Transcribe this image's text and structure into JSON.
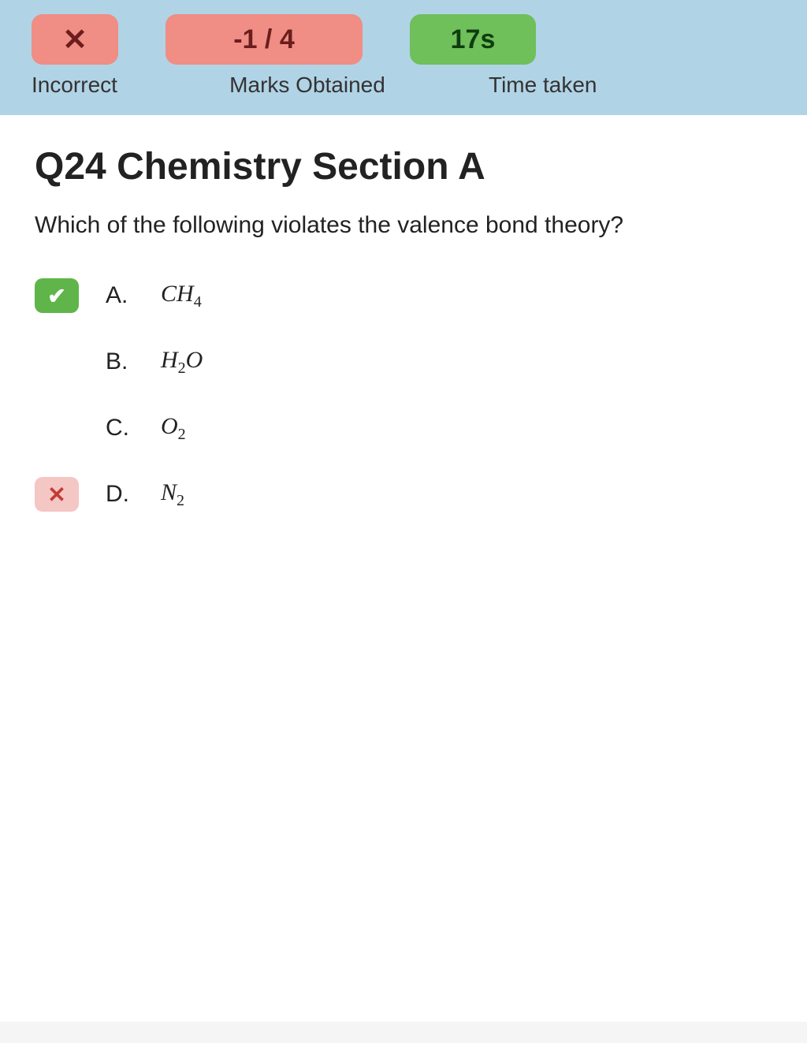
{
  "colors": {
    "banner_bg": "#b1d3e6",
    "badge_red_bg": "#f08d84",
    "badge_red_text": "#6b1d1d",
    "badge_green_bg": "#6fbf5a",
    "badge_green_text": "#0f3d0f",
    "indicator_correct_bg": "#5fb54a",
    "indicator_wrong_bg": "#f4c6c4",
    "indicator_wrong_text": "#c23c35",
    "content_bg": "#ffffff"
  },
  "wrong_badge_symbol": "✕",
  "marks_badge": "-1 / 4",
  "time_badge": "17s",
  "labels": {
    "incorrect": "Incorrect",
    "marks": "Marks Obtained",
    "time": "Time taken"
  },
  "question": {
    "title": "Q24 Chemistry Section A",
    "text": "Which of the following violates the valence bond theory?"
  },
  "options": [
    {
      "letter": "A.",
      "formula_html": "CH<sub>4</sub>",
      "state": "correct",
      "mark": "✔"
    },
    {
      "letter": "B.",
      "formula_html": "H<sub>2</sub>O",
      "state": "none",
      "mark": ""
    },
    {
      "letter": "C.",
      "formula_html": "O<sub>2</sub>",
      "state": "none",
      "mark": ""
    },
    {
      "letter": "D.",
      "formula_html": "N<sub>2</sub>",
      "state": "wrong",
      "mark": "✕"
    }
  ]
}
